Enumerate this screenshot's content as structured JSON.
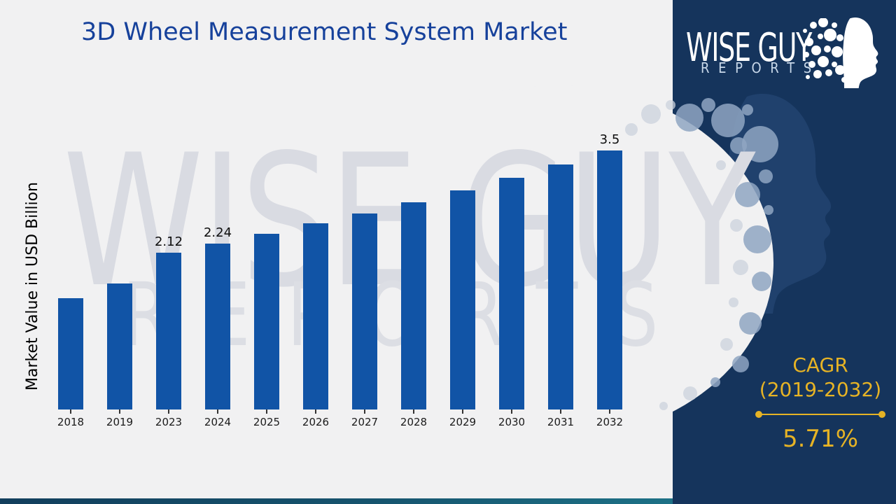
{
  "colors": {
    "bg": "#f1f1f2",
    "panel": "#15345c",
    "bar": "#1154a6",
    "title": "#16419b",
    "accent": "#e6b325",
    "wm": "#d9dbe2"
  },
  "header": {
    "title": "3D Wheel Measurement System Market"
  },
  "watermark": {
    "line1": "WISE GUY",
    "line2": "REPORTS"
  },
  "logo": {
    "line1": "WISE GUY",
    "line2": "REPORTS"
  },
  "side_panel": {
    "cagr_label": "CAGR",
    "cagr_range": "(2019-2032)",
    "cagr_value": "5.71%"
  },
  "chart_data": {
    "type": "bar",
    "title": "3D Wheel Measurement System Market",
    "categories": [
      "2018",
      "2019",
      "2023",
      "2024",
      "2025",
      "2026",
      "2027",
      "2028",
      "2029",
      "2030",
      "2031",
      "2032"
    ],
    "values": [
      1.5,
      1.7,
      2.12,
      2.24,
      2.37,
      2.51,
      2.65,
      2.8,
      2.96,
      3.13,
      3.31,
      3.5
    ],
    "data_labels": [
      "",
      "",
      "2.12",
      "2.24",
      "",
      "",
      "",
      "",
      "",
      "",
      "",
      "3.5"
    ],
    "xlabel": "",
    "ylabel": "Market Value in USD Billion",
    "ylim": [
      0,
      3.9
    ],
    "grid": false,
    "legend": false,
    "bar_color": "#1154a6"
  }
}
